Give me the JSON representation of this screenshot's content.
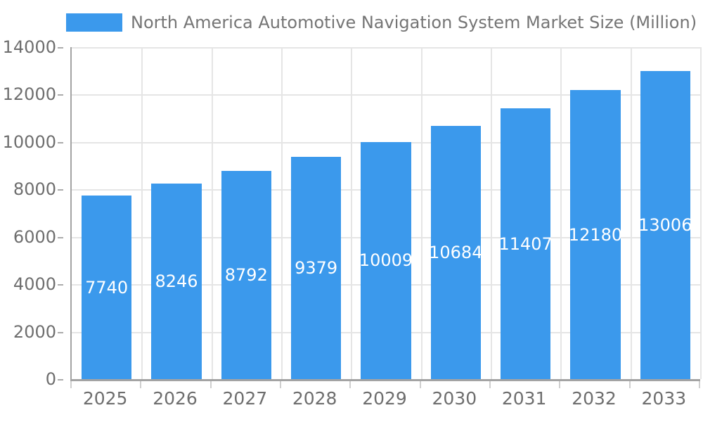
{
  "chart_data": {
    "type": "bar",
    "title": "North America Automotive Navigation System Market Size (Million)",
    "legend": {
      "label": "North America Automotive Navigation System Market Size (Million)",
      "position": "top"
    },
    "categories": [
      "2025",
      "2026",
      "2027",
      "2028",
      "2029",
      "2030",
      "2031",
      "2032",
      "2033"
    ],
    "values": [
      7740,
      8246,
      8792,
      9379,
      10009,
      10684,
      11407,
      12180,
      13006
    ],
    "xlabel": "",
    "ylabel": "",
    "ylim": [
      0,
      14000
    ],
    "ytick_step": 2000,
    "yticks": [
      0,
      2000,
      4000,
      6000,
      8000,
      10000,
      12000,
      14000
    ],
    "grid": "horizontal and vertical light gray gridlines",
    "legend_position": "top",
    "colors": {
      "bar": "#3b99ec",
      "bar_label_text": "#ffffff",
      "axis_line": "#a3a3a3",
      "gridline": "#e5e5e5",
      "axis_text": "#6e6e6e",
      "legend_text": "#757575",
      "background": "#ffffff"
    }
  }
}
